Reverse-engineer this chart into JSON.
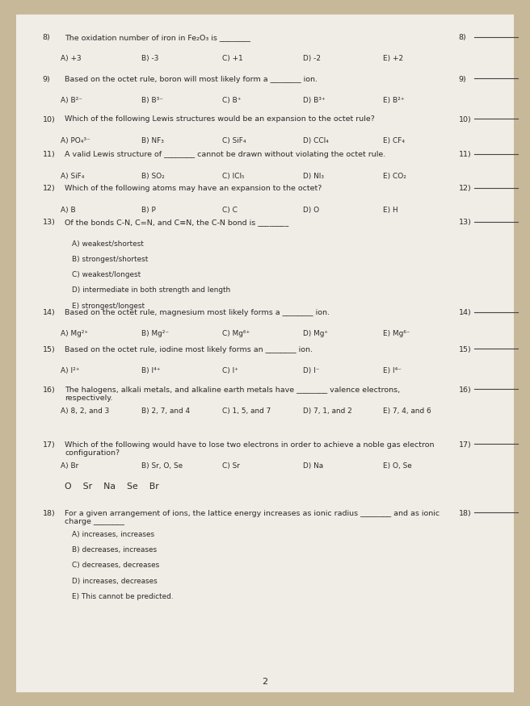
{
  "bg_color": "#c8b89a",
  "paper_color": "#f0ece6",
  "text_color": "#2a2a2a",
  "page_number": "2",
  "questions": [
    {
      "number": "8)",
      "text": "The oxidation number of iron in Fe₂O₃ is ________",
      "choices": [
        "A) +3",
        "B) -3",
        "C) +1",
        "D) -2",
        "E) +2"
      ]
    },
    {
      "number": "9)",
      "text": "Based on the octet rule, boron will most likely form a ________ ion.",
      "choices": [
        "A) B²⁻",
        "B) B³⁻",
        "C) B⁺",
        "D) B³⁺",
        "E) B²⁺"
      ]
    },
    {
      "number": "10)",
      "text": "Which of the following Lewis structures would be an expansion to the octet rule?",
      "choices": [
        "A) PO₄³⁻",
        "B) NF₃",
        "C) SiF₄",
        "D) CCl₄",
        "E) CF₄"
      ]
    },
    {
      "number": "11)",
      "text": "A valid Lewis structure of ________ cannot be drawn without violating the octet rule.",
      "choices": [
        "A) SiF₄",
        "B) SO₂",
        "C) ICl₅",
        "D) NI₃",
        "E) CO₂"
      ]
    },
    {
      "number": "12)",
      "text": "Which of the following atoms may have an expansion to the octet?",
      "choices": [
        "A) B",
        "B) P",
        "C) C",
        "D) O",
        "E) H"
      ]
    },
    {
      "number": "13)",
      "text": "Of the bonds C-N, C=N, and C≡N, the C-N bond is ________",
      "choices_vertical": [
        "A) weakest/shortest",
        "B) strongest/shortest",
        "C) weakest/longest",
        "D) intermediate in both strength and length",
        "E) strongest/longest"
      ]
    },
    {
      "number": "14)",
      "text": "Based on the octet rule, magnesium most likely forms a ________ ion.",
      "choices": [
        "A) Mg²⁺",
        "B) Mg²⁻",
        "C) Mg⁶⁺",
        "D) Mg⁺",
        "E) Mg⁶⁻"
      ]
    },
    {
      "number": "15)",
      "text": "Based on the octet rule, iodine most likely forms an ________ ion.",
      "choices": [
        "A) I²⁺",
        "B) I⁴⁺",
        "C) I⁺",
        "D) I⁻",
        "E) I⁴⁻"
      ]
    },
    {
      "number": "16)",
      "text": "The halogens, alkali metals, and alkaline earth metals have ________ valence electrons,\nrespectively.",
      "choices": [
        "A) 8, 2, and 3",
        "B) 2, 7, and 4",
        "C) 1, 5, and 7",
        "D) 7, 1, and 2",
        "E) 7, 4, and 6"
      ]
    },
    {
      "number": "17)",
      "text": "Which of the following would have to lose two electrons in order to achieve a noble gas electron\nconfiguration?",
      "element_row": "O    Sr    Na    Se    Br",
      "choices": [
        "A) Br",
        "B) Sr, O, Se",
        "C) Sr",
        "D) Na",
        "E) O, Se"
      ]
    },
    {
      "number": "18)",
      "text": "For a given arrangement of ions, the lattice energy increases as ionic radius ________ and as ionic\ncharge ________",
      "choices_vertical": [
        "A) increases, increases",
        "B) decreases, increases",
        "C) decreases, decreases",
        "D) increases, decreases",
        "E) This cannot be predicted."
      ]
    }
  ]
}
